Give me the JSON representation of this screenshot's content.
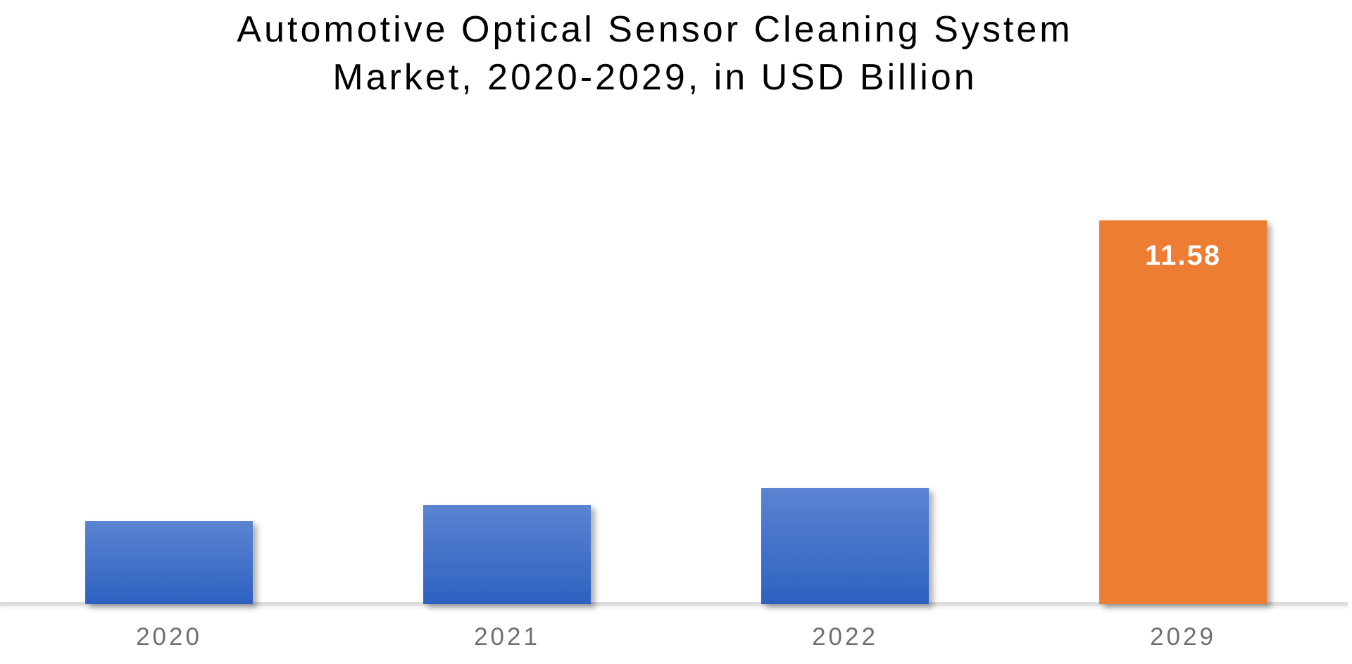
{
  "chart_data": {
    "type": "bar",
    "title": "Automotive Optical Sensor Cleaning System Market, 2020-2029, in USD Billion",
    "title_line1": "Automotive Optical Sensor Cleaning System",
    "title_line2": "Market, 2020-2029, in USD Billion",
    "categories": [
      "2020",
      "2021",
      "2022",
      "2029"
    ],
    "values": [
      2.5,
      3.0,
      3.5,
      11.58
    ],
    "data_labels": [
      "",
      "",
      "",
      "11.58"
    ],
    "ylim": [
      0,
      11.58
    ],
    "xlabel": "",
    "ylabel": "",
    "grid": false,
    "y_axis_visible": false,
    "legend": "none",
    "bar_roles": [
      "default",
      "default",
      "default",
      "highlight"
    ],
    "colors": {
      "default_bar_top": "#5b84d2",
      "default_bar_bottom": "#2d61c0",
      "highlight_bar": "#ed7d33",
      "data_label_text": "#ffffff",
      "axis_line": "#dcdcdc",
      "tick_label": "#6f6f6f",
      "title_text": "#000000",
      "background": "#ffffff"
    }
  }
}
